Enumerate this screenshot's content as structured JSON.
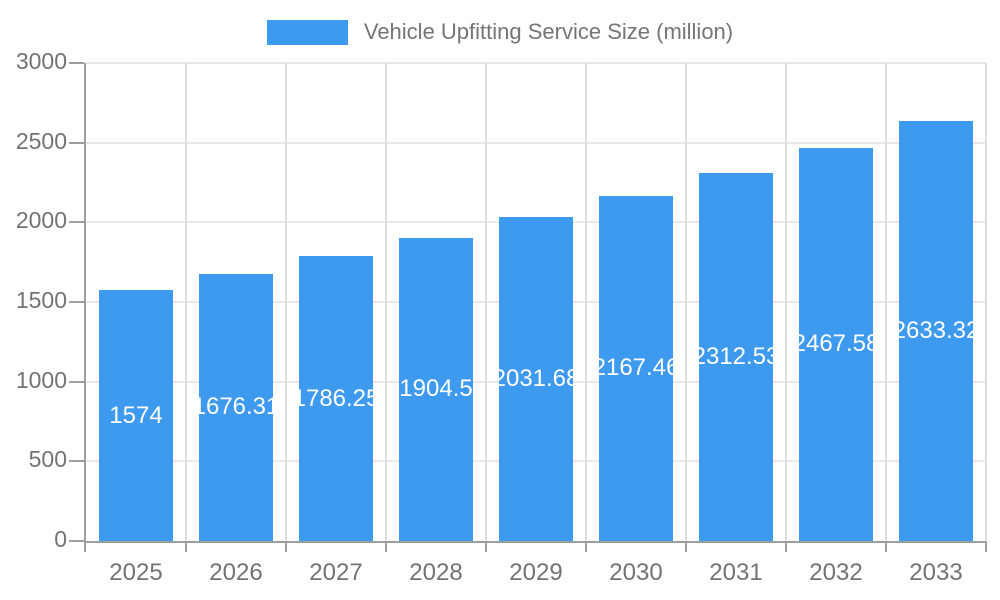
{
  "legend": {
    "label": "Vehicle Upfitting Service Size (million)"
  },
  "chart_data": {
    "type": "bar",
    "title": "Vehicle Upfitting Service Size (million)",
    "categories": [
      "2025",
      "2026",
      "2027",
      "2028",
      "2029",
      "2030",
      "2031",
      "2032",
      "2033"
    ],
    "values": [
      1574,
      1676.31,
      1786.25,
      1904.5,
      2031.68,
      2167.46,
      2312.53,
      2467.58,
      2633.32
    ],
    "bar_labels": [
      "1574",
      "1676.31",
      "1786.25",
      "1904.5",
      "2031.68",
      "2167.46",
      "2312.53",
      "2467.58",
      "2633.32"
    ],
    "xlabel": "",
    "ylabel": "",
    "ylim": [
      0,
      3000
    ],
    "yticks": [
      0,
      500,
      1000,
      1500,
      2000,
      2500,
      3000
    ],
    "grid": true,
    "legend_position": "top",
    "value_label_position": "inside-center",
    "colors": {
      "bar": "#3d9aef",
      "value_label": "#ffffff",
      "axis_line": "#9e9e9e",
      "grid_horizontal": "#e8e8e8",
      "grid_vertical": "#dddddd",
      "tick_label": "#737373",
      "legend_text": "#757575",
      "background": "#ffffff"
    }
  }
}
